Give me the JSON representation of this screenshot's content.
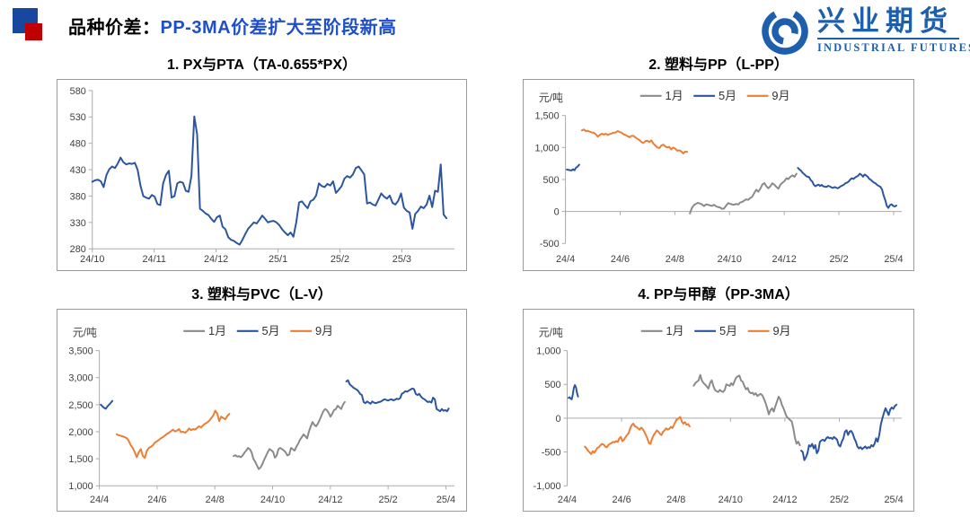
{
  "header": {
    "prefix": "品种价差：",
    "highlight": "PP-3MA价差扩大至阶段新高",
    "highlight_color": "#1E4FC8",
    "square_blue": "#17479E",
    "square_red": "#C00000"
  },
  "logo": {
    "cn": "兴业期货",
    "en": "INDUSTRIAL FUTURES",
    "color": "#1E5FAD",
    "icon": "swirl-g-icon"
  },
  "axis_color": "#ABABAB",
  "label_color": "#3F3F3F",
  "chart_data": [
    {
      "type": "line",
      "title": "1. PX与PTA（TA-0.655*PX）",
      "unit": "",
      "ylim": [
        280,
        580
      ],
      "yticks": [
        280,
        330,
        380,
        430,
        480,
        530,
        580
      ],
      "ytick_labels": [
        "280",
        "330",
        "380",
        "430",
        "480",
        "530",
        "580"
      ],
      "xlim": [
        0,
        5.85
      ],
      "xticks": [
        0,
        1,
        2,
        3,
        4,
        5
      ],
      "xtick_labels": [
        "24/10",
        "24/11",
        "24/12",
        "25/1",
        "25/2",
        "25/3"
      ],
      "axis_y": 280,
      "legend": null,
      "series": [
        {
          "name": "价差",
          "color": "#2B55A0",
          "x0": 0,
          "x1": 5.72,
          "values": [
            407,
            410,
            411,
            408,
            397,
            420,
            431,
            436,
            433,
            442,
            453,
            444,
            440,
            442,
            441,
            443,
            430,
            400,
            380,
            377,
            375,
            382,
            379,
            365,
            363,
            404,
            420,
            428,
            377,
            380,
            404,
            407,
            405,
            390,
            388,
            418,
            531,
            497,
            356,
            352,
            347,
            344,
            337,
            331,
            340,
            343,
            322,
            317,
            302,
            297,
            295,
            291,
            288,
            297,
            308,
            318,
            324,
            330,
            328,
            335,
            343,
            337,
            330,
            332,
            333,
            330,
            325,
            317,
            311,
            306,
            311,
            303,
            330,
            368,
            370,
            363,
            357,
            370,
            373,
            381,
            404,
            399,
            397,
            403,
            400,
            408,
            386,
            392,
            399,
            413,
            418,
            415,
            421,
            433,
            436,
            429,
            421,
            366,
            368,
            364,
            362,
            373,
            385,
            379,
            375,
            381,
            367,
            364,
            371,
            385,
            358,
            352,
            349,
            318,
            346,
            352,
            360,
            357,
            364,
            381,
            359,
            390,
            388,
            440,
            345,
            338
          ]
        }
      ]
    },
    {
      "type": "line",
      "title": "2. 塑料与PP（L-PP）",
      "unit": "元/吨",
      "ylim": [
        -500,
        1500
      ],
      "yticks": [
        -500,
        0,
        500,
        1000,
        1500
      ],
      "ytick_labels": [
        "-500",
        "0",
        "500",
        "1,000",
        "1,500"
      ],
      "xlim": [
        0,
        12.3
      ],
      "xticks": [
        0,
        2,
        4,
        6,
        8,
        10,
        12
      ],
      "xtick_labels": [
        "24/4",
        "24/6",
        "24/8",
        "24/10",
        "24/12",
        "25/2",
        "25/4"
      ],
      "axis_y": 0,
      "legend": [
        {
          "label": "1月",
          "color": "#8A8A8A"
        },
        {
          "label": "5月",
          "color": "#2B55A0"
        },
        {
          "label": "9月",
          "color": "#ED7D31"
        }
      ],
      "series": [
        {
          "name": "1月",
          "color": "#8A8A8A",
          "x0": 4.55,
          "x1": 8.45,
          "values": [
            -30,
            55,
            100,
            120,
            135,
            125,
            110,
            85,
            110,
            105,
            95,
            88,
            105,
            80,
            68,
            62,
            40,
            48,
            90,
            130,
            120,
            110,
            105,
            118,
            108,
            140,
            150,
            170,
            190,
            182,
            210,
            230,
            290,
            340,
            308,
            355,
            420,
            445,
            393,
            362,
            395,
            440,
            418,
            383,
            355,
            420,
            450,
            475,
            520,
            505,
            545,
            565,
            542,
            590
          ]
        },
        {
          "name": "9月",
          "color": "#ED7D31",
          "x0": 0.6,
          "x1": 4.45,
          "values": [
            1265,
            1280,
            1255,
            1260,
            1245,
            1235,
            1230,
            1205,
            1170,
            1195,
            1215,
            1200,
            1215,
            1195,
            1210,
            1220,
            1230,
            1235,
            1255,
            1240,
            1230,
            1205,
            1195,
            1175,
            1160,
            1180,
            1180,
            1155,
            1135,
            1115,
            1085,
            1070,
            1100,
            1105,
            1085,
            1110,
            1060,
            1030,
            1000,
            990,
            1030,
            1045,
            1015,
            1000,
            1010,
            970,
            1000,
            980,
            950,
            955,
            940,
            905,
            935,
            930
          ]
        },
        {
          "name": "5月",
          "color": "#2B55A0",
          "x0": 0.05,
          "x1": 0.5,
          "values": [
            655,
            650,
            645,
            640,
            660,
            645,
            685,
            700,
            730
          ]
        },
        {
          "name": "5月",
          "color": "#2B55A0",
          "x0": 8.5,
          "x1": 12.1,
          "values": [
            680,
            655,
            638,
            603,
            583,
            558,
            543,
            538,
            493,
            468,
            418,
            395,
            410,
            420,
            398,
            415,
            393,
            388,
            383,
            400,
            393,
            378,
            368,
            380,
            373,
            363,
            375,
            395,
            405,
            420,
            445,
            450,
            468,
            500,
            520,
            508,
            530,
            545,
            560,
            590,
            573,
            543,
            578,
            563,
            543,
            508,
            493,
            468,
            450,
            438,
            413,
            398,
            383,
            343,
            248,
            178,
            88,
            55,
            100,
            113,
            88,
            78,
            93
          ]
        }
      ]
    },
    {
      "type": "line",
      "title": "3. 塑料与PVC（L-V）",
      "unit": "元/吨",
      "ylim": [
        1000,
        3500
      ],
      "yticks": [
        1000,
        1500,
        2000,
        2500,
        3000,
        3500
      ],
      "ytick_labels": [
        "1,000",
        "1,500",
        "2,000",
        "2,500",
        "3,000",
        "3,500"
      ],
      "xlim": [
        0,
        12.3
      ],
      "xticks": [
        0,
        2,
        4,
        6,
        8,
        10,
        12
      ],
      "xtick_labels": [
        "24/4",
        "24/6",
        "24/8",
        "24/10",
        "24/12",
        "25/2",
        "25/4"
      ],
      "axis_y": 1000,
      "legend": [
        {
          "label": "1月",
          "color": "#8A8A8A"
        },
        {
          "label": "5月",
          "color": "#2B55A0"
        },
        {
          "label": "9月",
          "color": "#ED7D31"
        }
      ],
      "series": [
        {
          "name": "1月",
          "color": "#8A8A8A",
          "x0": 4.65,
          "x1": 8.5,
          "values": [
            1550,
            1565,
            1540,
            1548,
            1530,
            1560,
            1610,
            1650,
            1700,
            1678,
            1620,
            1500,
            1448,
            1380,
            1310,
            1340,
            1400,
            1480,
            1550,
            1620,
            1680,
            1658,
            1628,
            1520,
            1560,
            1680,
            1700,
            1678,
            1655,
            1618,
            1560,
            1580,
            1700,
            1680,
            1650,
            1720,
            1780,
            1850,
            1900,
            1950,
            1918,
            1878,
            2000,
            2100,
            2180,
            2128,
            2100,
            2150,
            2220,
            2300,
            2380,
            2420,
            2398,
            2348,
            2278,
            2330,
            2400,
            2420,
            2480,
            2450,
            2420,
            2500,
            2550
          ]
        },
        {
          "name": "9月",
          "color": "#ED7D31",
          "x0": 0.6,
          "x1": 4.5,
          "values": [
            1950,
            1935,
            1925,
            1915,
            1900,
            1880,
            1830,
            1750,
            1700,
            1620,
            1530,
            1620,
            1680,
            1555,
            1515,
            1650,
            1700,
            1720,
            1750,
            1800,
            1820,
            1850,
            1880,
            1900,
            1930,
            1960,
            1980,
            2010,
            2040,
            2005,
            2020,
            2050,
            1990,
            2000,
            1980,
            2010,
            2060,
            2030,
            2050,
            2040,
            2070,
            2100,
            2080,
            2120,
            2150,
            2170,
            2200,
            2250,
            2300,
            2390,
            2335,
            2195,
            2280,
            2250,
            2230,
            2290,
            2330
          ]
        },
        {
          "name": "5月",
          "color": "#2B55A0",
          "x0": 0.05,
          "x1": 0.45,
          "values": [
            2500,
            2470,
            2440,
            2425,
            2465,
            2500,
            2530,
            2570
          ]
        },
        {
          "name": "5月",
          "color": "#2B55A0",
          "x0": 8.55,
          "x1": 12.1,
          "values": [
            2930,
            2950,
            2875,
            2848,
            2818,
            2798,
            2778,
            2748,
            2698,
            2678,
            2550,
            2528,
            2560,
            2538,
            2518,
            2560,
            2538,
            2528,
            2540,
            2550,
            2560,
            2580,
            2600,
            2588,
            2578,
            2590,
            2600,
            2580,
            2590,
            2610,
            2600,
            2620,
            2700,
            2720,
            2750,
            2738,
            2760,
            2780,
            2800,
            2788,
            2700,
            2678,
            2700,
            2650,
            2618,
            2600,
            2570,
            2548,
            2560,
            2538,
            2630,
            2598,
            2420,
            2400,
            2378,
            2420,
            2388,
            2400,
            2378,
            2430
          ]
        }
      ]
    },
    {
      "type": "line",
      "title": "4. PP与甲醇（PP-3MA）",
      "unit": "元/吨",
      "ylim": [
        -1000,
        1000
      ],
      "yticks": [
        -1000,
        -500,
        0,
        500,
        1000
      ],
      "ytick_labels": [
        "-1,000",
        "-500",
        "0",
        "500",
        "1,000"
      ],
      "xlim": [
        0,
        12.3
      ],
      "xticks": [
        0,
        2,
        4,
        6,
        8,
        10,
        12
      ],
      "xtick_labels": [
        "24/4",
        "24/6",
        "24/8",
        "24/10",
        "24/12",
        "25/2",
        "25/4"
      ],
      "axis_y": 0,
      "legend": [
        {
          "label": "1月",
          "color": "#8A8A8A"
        },
        {
          "label": "5月",
          "color": "#2B55A0"
        },
        {
          "label": "9月",
          "color": "#ED7D31"
        }
      ],
      "series": [
        {
          "name": "1月",
          "color": "#8A8A8A",
          "x0": 4.65,
          "x1": 8.55,
          "values": [
            480,
            520,
            540,
            560,
            640,
            558,
            518,
            498,
            468,
            438,
            520,
            560,
            478,
            418,
            398,
            388,
            418,
            398,
            388,
            418,
            500,
            488,
            478,
            518,
            488,
            548,
            600,
            618,
            630,
            558,
            538,
            478,
            428,
            448,
            388,
            368,
            378,
            348,
            368,
            328,
            348,
            358,
            338,
            288,
            228,
            148,
            58,
            118,
            148,
            98,
            178,
            248,
            318,
            278,
            198,
            148,
            78,
            18,
            0,
            -28,
            -48,
            -148,
            -298,
            -378,
            -348,
            -400
          ]
        },
        {
          "name": "9月",
          "color": "#ED7D31",
          "x0": 0.65,
          "x1": 4.5,
          "values": [
            -420,
            -445,
            -480,
            -505,
            -530,
            -488,
            -510,
            -478,
            -440,
            -428,
            -400,
            -380,
            -390,
            -420,
            -430,
            -398,
            -378,
            -368,
            -350,
            -358,
            -338,
            -350,
            -300,
            -278,
            -340,
            -320,
            -280,
            -250,
            -220,
            -150,
            -100,
            -80,
            -120,
            -130,
            -150,
            -170,
            -140,
            -160,
            -200,
            -250,
            -300,
            -370,
            -380,
            -300,
            -250,
            -218,
            -180,
            -200,
            -230,
            -250,
            -200,
            -178,
            -150,
            -168,
            -158,
            -128,
            -148,
            -98,
            -48,
            -18,
            0,
            18,
            -50,
            -80,
            -58,
            -98,
            -88,
            -120
          ]
        },
        {
          "name": "5月",
          "color": "#2B55A0",
          "x0": 0.05,
          "x1": 0.4,
          "values": [
            300,
            310,
            288,
            280,
            350,
            450,
            490,
            455,
            375,
            320
          ]
        },
        {
          "name": "5月",
          "color": "#2B55A0",
          "x0": 8.6,
          "x1": 12.1,
          "values": [
            -480,
            -500,
            -620,
            -578,
            -518,
            -400,
            -418,
            -380,
            -448,
            -398,
            -518,
            -478,
            -348,
            -328,
            -318,
            -338,
            -298,
            -278,
            -298,
            -288,
            -308,
            -278,
            -298,
            -318,
            -398,
            -418,
            -348,
            -298,
            -200,
            -178,
            -248,
            -198,
            -188,
            -228,
            -298,
            -348,
            -418,
            -448,
            -428,
            -458,
            -438,
            -418,
            -448,
            -428,
            -438,
            -398,
            -418,
            -378,
            -298,
            -348,
            -248,
            -98,
            0,
            80,
            148,
            98,
            48,
            128,
            158,
            138,
            180,
            200
          ]
        }
      ]
    }
  ]
}
